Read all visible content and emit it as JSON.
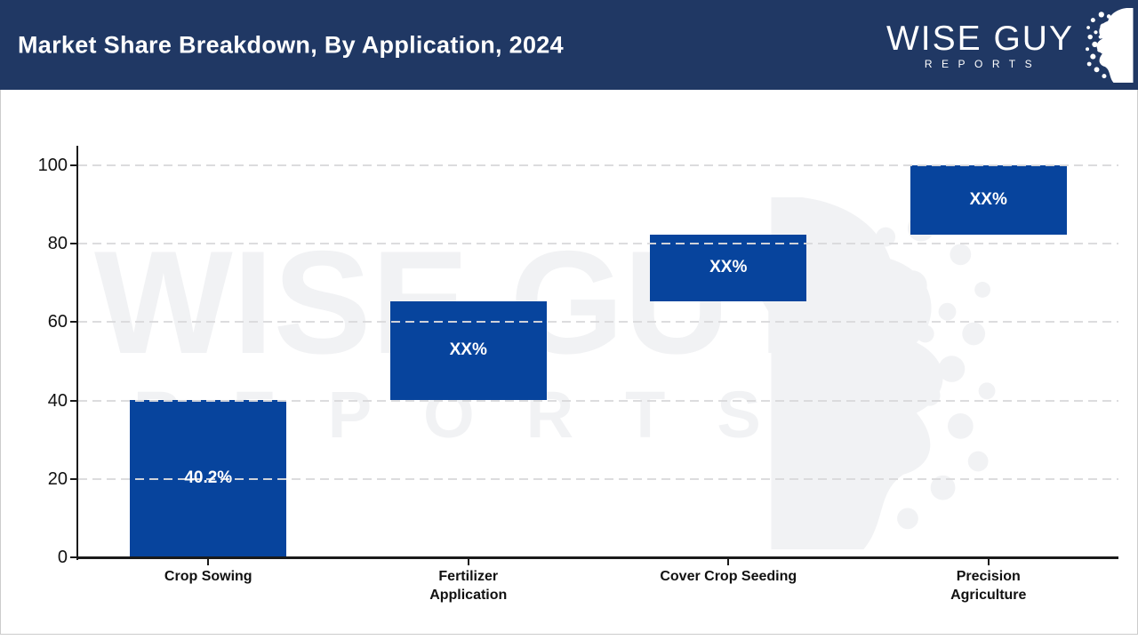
{
  "header": {
    "title": "Market Share Breakdown, By Application, 2024",
    "bg_color": "#203864",
    "logo": {
      "line1": "WISE GUY",
      "line2": "REPORTS"
    }
  },
  "watermark": {
    "line1": "WISE GUY",
    "line2": "REPORTS"
  },
  "colors": {
    "header_bg": "#203864",
    "bar_blue": "#07449d",
    "gridline": "#dadadc",
    "axis": "#1a1a1a",
    "watermark": "#f1f2f4",
    "card_border": "#cccccc"
  },
  "chart_data": {
    "type": "bar",
    "subtype": "floating-waterfall",
    "title": "Market Share Breakdown, By Application, 2024",
    "categories": [
      "Crop Sowing",
      "Fertilizer Application",
      "Cover Crop Seeding",
      "Precision Agriculture"
    ],
    "xtick_labels": [
      "Crop Sowing",
      "Fertilizer\nApplication",
      "Cover Crop Seeding",
      "Precision\nAgriculture"
    ],
    "segments": [
      {
        "category": "Crop Sowing",
        "start": 0,
        "end": 40.2,
        "label": "40.2%"
      },
      {
        "category": "Fertilizer Application",
        "start": 40.2,
        "end": 65.4,
        "label": "XX%"
      },
      {
        "category": "Cover Crop Seeding",
        "start": 65.4,
        "end": 82.3,
        "label": "XX%"
      },
      {
        "category": "Precision Agriculture",
        "start": 82.3,
        "end": 100,
        "label": "XX%"
      }
    ],
    "ylim": [
      0,
      100
    ],
    "yticks": [
      0,
      20,
      40,
      60,
      80,
      100
    ],
    "bar_color": "#07449d",
    "value_label_color": "#ffffff",
    "grid": "horizontal-dashed",
    "grid_above_bars": true,
    "legend": "none"
  }
}
